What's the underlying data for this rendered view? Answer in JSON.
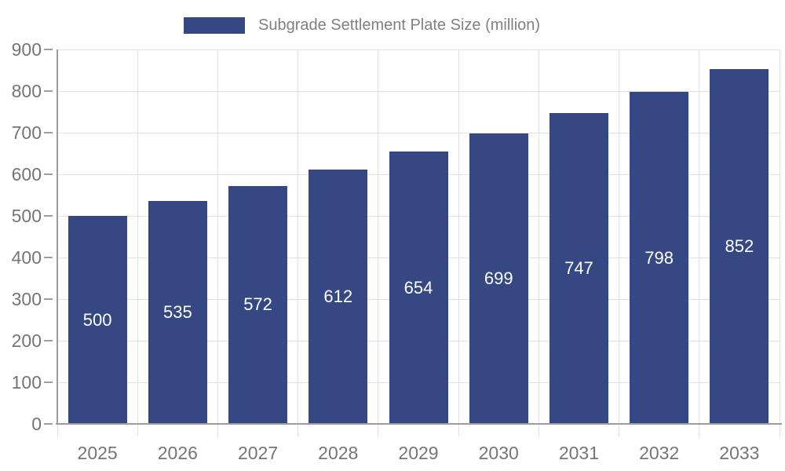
{
  "chart_data": {
    "type": "bar",
    "title": "Subgrade Settlement Plate Size (million)",
    "categories": [
      "2025",
      "2026",
      "2027",
      "2028",
      "2029",
      "2030",
      "2031",
      "2032",
      "2033"
    ],
    "values": [
      500,
      535,
      572,
      612,
      654,
      699,
      747,
      798,
      852
    ],
    "xlabel": "",
    "ylabel": "",
    "ylim": [
      0,
      900
    ],
    "ytick_step": 100,
    "ytick_labels": [
      "0",
      "100",
      "200",
      "300",
      "400",
      "500",
      "600",
      "700",
      "800",
      "900"
    ],
    "grid": true,
    "legend_position": "top",
    "bar_label_position": "inside-center",
    "colors": {
      "bar": "#364884",
      "bar_label": "#ffffff",
      "grid": "#e2e2e2",
      "axis": "#9c9c9c",
      "tick": "#9e9e9e",
      "tick_label": "#757575",
      "legend_text": "#808080",
      "background": "#ffffff"
    }
  }
}
